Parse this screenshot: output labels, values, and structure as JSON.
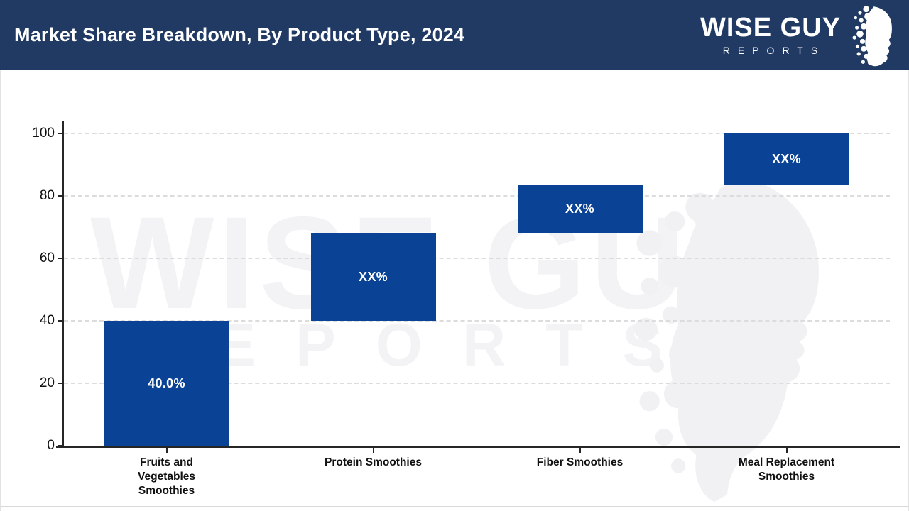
{
  "header": {
    "title": "Market Share Breakdown, By Product Type, 2024",
    "bg_color": "#213a64",
    "logo": {
      "wordmark": "WISE GUY",
      "subtext": "REPORTS"
    }
  },
  "watermark": {
    "wordmark": "WISE GUY",
    "subtext": "REPORTS"
  },
  "chart_data": {
    "type": "bar",
    "subtype": "waterfall-style floating percentage bars",
    "title": "Market Share Breakdown, By Product Type, 2024",
    "categories": [
      "Fruits and Vegetables Smoothies",
      "Protein Smoothies",
      "Fiber Smoothies",
      "Meal Replacement Smoothies"
    ],
    "category_label_lines": [
      [
        "Fruits and",
        "Vegetables",
        "Smoothies"
      ],
      [
        "Protein Smoothies"
      ],
      [
        "Fiber Smoothies"
      ],
      [
        "Meal Replacement",
        "Smoothies"
      ]
    ],
    "series": [
      {
        "name": "Market share (%)",
        "segments": [
          {
            "category": "Fruits and Vegetables Smoothies",
            "start": 0,
            "end": 40,
            "label": "40.0%"
          },
          {
            "category": "Protein Smoothies",
            "start": 40,
            "end": 68,
            "label": "XX%"
          },
          {
            "category": "Fiber Smoothies",
            "start": 68,
            "end": 83.5,
            "label": "XX%"
          },
          {
            "category": "Meal Replacement Smoothies",
            "start": 83.5,
            "end": 100,
            "label": "XX%"
          }
        ]
      }
    ],
    "ylim": [
      0,
      100
    ],
    "yticks": [
      0,
      20,
      40,
      60,
      80,
      100
    ],
    "grid": "horizontal dashed light-gray",
    "legend": "none",
    "bar_color": "#0a4296",
    "bar_label_color": "#ffffff",
    "axis_color": "#262626"
  }
}
